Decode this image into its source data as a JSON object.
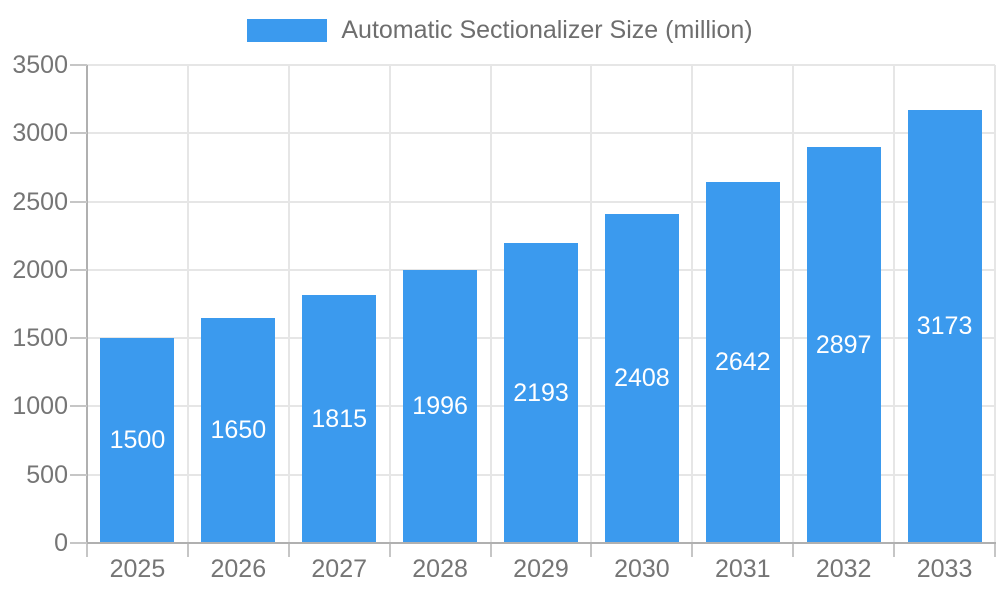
{
  "legend": {
    "label": "Automatic Sectionalizer Size (million)"
  },
  "colors": {
    "bar": "#3B9AEE",
    "axis_text": "#757575",
    "legend_text": "#6E6E6E",
    "grid": "#E6E6E6",
    "axis_line": "#B0B0B0",
    "tick": "#C6C6C6",
    "value_label": "#FFFFFF"
  },
  "chart_data": {
    "type": "bar",
    "title": "Automatic Sectionalizer Size (million)",
    "series_name": "Automatic Sectionalizer Size (million)",
    "categories": [
      "2025",
      "2026",
      "2027",
      "2028",
      "2029",
      "2030",
      "2031",
      "2032",
      "2033"
    ],
    "values": [
      1500,
      1650,
      1815,
      1996,
      2193,
      2408,
      2642,
      2897,
      3173
    ],
    "xlabel": "",
    "ylabel": "",
    "ylim": [
      0,
      3500
    ],
    "ytick_step": 500,
    "ytick_labels": [
      "0",
      "500",
      "1000",
      "1500",
      "2000",
      "2500",
      "3000",
      "3500"
    ],
    "grid": true,
    "legend_position": "top-center",
    "value_labels_position": "inside-center"
  }
}
